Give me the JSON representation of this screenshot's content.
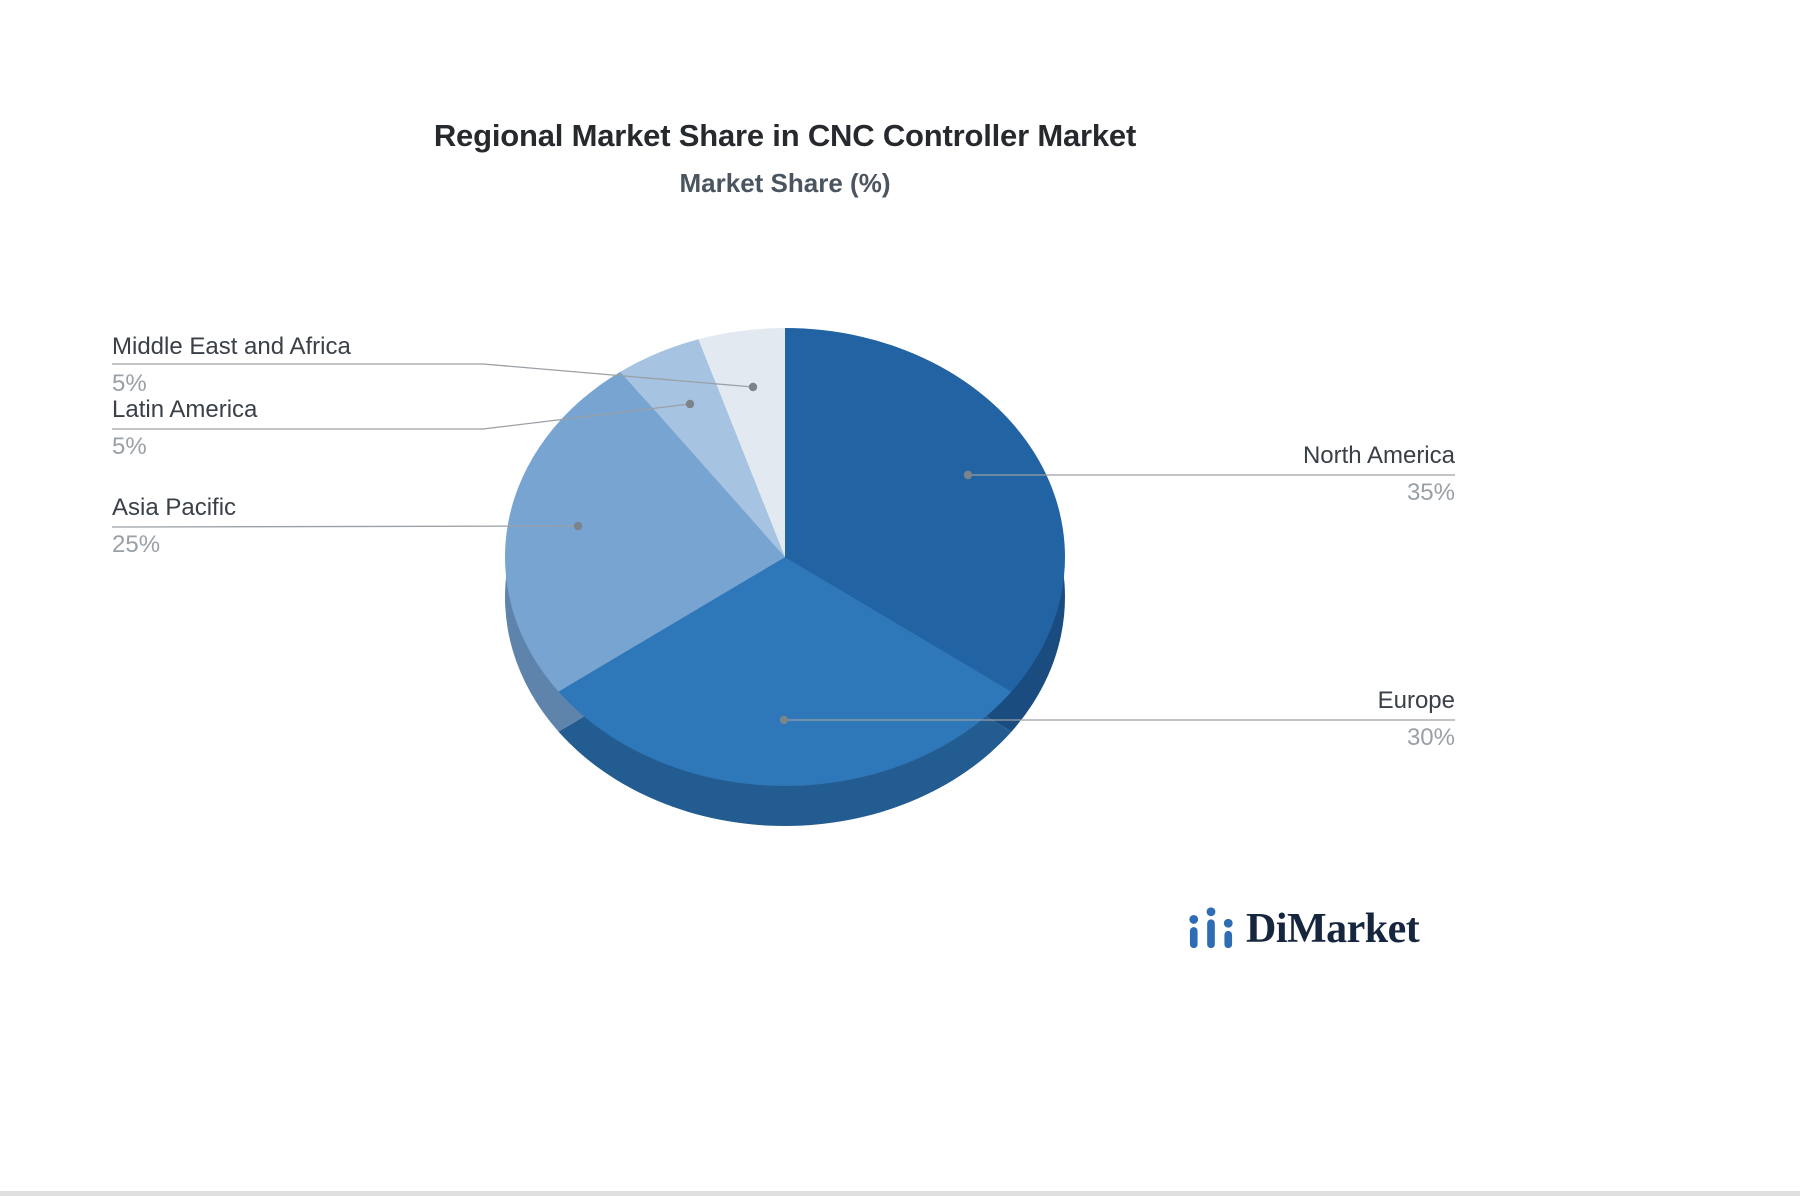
{
  "header": {
    "title": "Regional Market Share in CNC Controller Market",
    "subtitle": "Market Share (%)"
  },
  "chart_data": {
    "type": "pie",
    "style": "3d-pie",
    "title": "Regional Market Share in CNC Controller Market",
    "subtitle": "Market Share (%)",
    "unit": "%",
    "start_angle_deg": 0,
    "direction": "clockwise",
    "categories": [
      "North America",
      "Europe",
      "Asia Pacific",
      "Latin America",
      "Middle East and Africa"
    ],
    "values": [
      35,
      30,
      25,
      5,
      5
    ],
    "colors": [
      "#2263A4",
      "#2E77B8",
      "#78A4D2",
      "#A6C4E2",
      "#E3E9F0"
    ],
    "depth_colors": [
      "#1A4C80",
      "#235C90",
      "#5F84AC",
      "#84A2C0",
      "#C3CDD9"
    ],
    "callouts": [
      {
        "label": "North America",
        "value_label": "35%"
      },
      {
        "label": "Europe",
        "value_label": "30%"
      },
      {
        "label": "Asia Pacific",
        "value_label": "25%"
      },
      {
        "label": "Latin America",
        "value_label": "5%"
      },
      {
        "label": "Middle East and Africa",
        "value_label": "5%"
      }
    ],
    "leader_line_color": "#9aa0a5",
    "legend": "none",
    "grid": false
  },
  "logo": {
    "text": "DiMarket",
    "icon": "bar-chart-icon",
    "icon_color": "#2E6DB4",
    "text_color": "#16263e"
  }
}
